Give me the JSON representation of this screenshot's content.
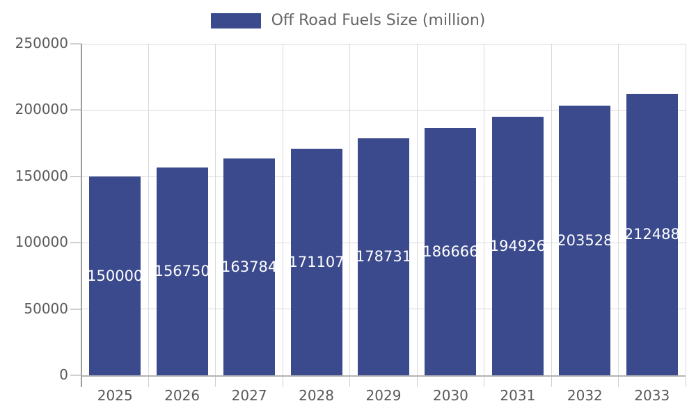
{
  "legend": {
    "label": "Off Road Fuels Size (million)"
  },
  "chart_data": {
    "type": "bar",
    "title": "Off Road Fuels Size (million)",
    "categories": [
      "2025",
      "2026",
      "2027",
      "2028",
      "2029",
      "2030",
      "2031",
      "2032",
      "2033"
    ],
    "series": [
      {
        "name": "Off Road Fuels Size (million)",
        "values": [
          150000,
          156750,
          163784,
          171107,
          178731,
          186666,
          194926,
          203528,
          212488
        ]
      }
    ],
    "bar_value_labels": [
      "150000",
      "156750",
      "163784",
      "171107",
      "178731",
      "186666",
      "194926",
      "203528",
      "212488"
    ],
    "xlabel": "",
    "ylabel": "",
    "ylim": [
      0,
      250000
    ],
    "yticks": [
      0,
      50000,
      100000,
      150000,
      200000,
      250000
    ],
    "ytick_labels": [
      "0",
      "50000",
      "100000",
      "150000",
      "200000",
      "250000"
    ],
    "grid": true,
    "legend_position": "top-center",
    "colors": {
      "bar": "#3b4a8c",
      "bar_label": "#ffffff",
      "grid": "#d9d9d9",
      "y_axis": "#9c9c9c",
      "x_axis": "#b3b3b3",
      "tick_mark": "#cfcfcf",
      "tick_text": "#595959",
      "legend_text": "#666666"
    }
  }
}
